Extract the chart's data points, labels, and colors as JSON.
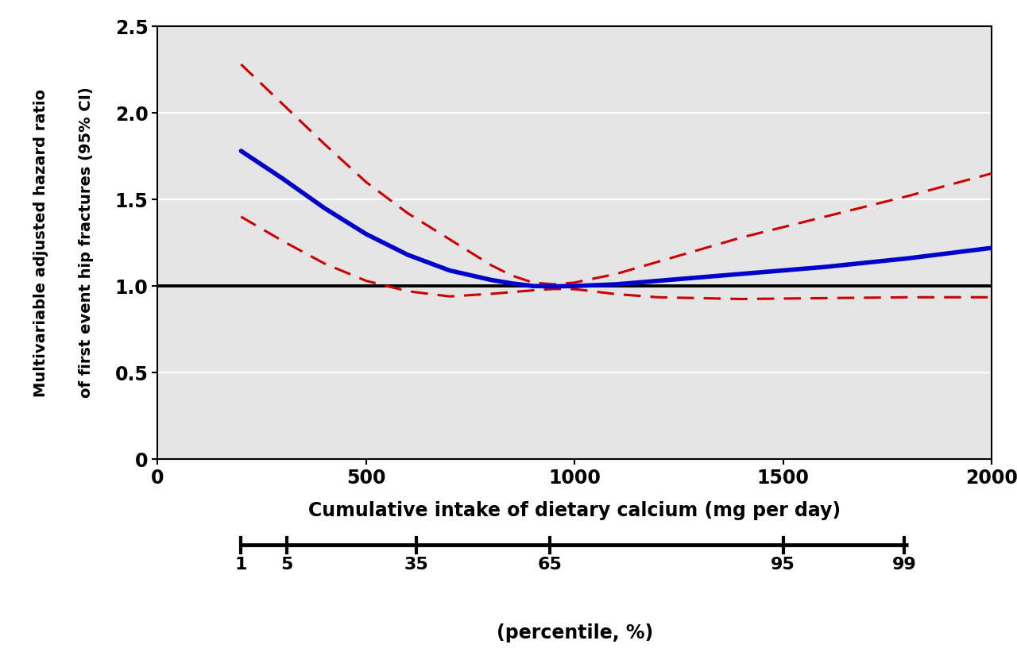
{
  "xlabel": "Cumulative intake of dietary calcium (mg per day)",
  "ylabel_line1": "Multivariable adjusted hazard ratio",
  "ylabel_line2": "of first event hip fractures (95% CI)",
  "xlabel2": "(percentile, %)",
  "xlim": [
    0,
    2000
  ],
  "ylim": [
    0,
    2.5
  ],
  "yticks": [
    0,
    0.5,
    1.0,
    1.5,
    2.0,
    2.5
  ],
  "ytick_labels": [
    "0",
    "0.5",
    "1.0",
    "1.5",
    "2.0",
    "2.5"
  ],
  "xticks": [
    0,
    500,
    1000,
    1500,
    2000
  ],
  "xtick_labels": [
    "0",
    "500",
    "1000",
    "1500",
    "2000"
  ],
  "bg_color": "#e5e5e5",
  "line_color": "#0000cc",
  "ci_color": "#cc0000",
  "ref_color": "#000000",
  "main_x": [
    200,
    300,
    400,
    500,
    600,
    700,
    800,
    850,
    900,
    950,
    1000,
    1100,
    1200,
    1400,
    1600,
    1800,
    2000
  ],
  "main_y": [
    1.78,
    1.62,
    1.45,
    1.3,
    1.18,
    1.09,
    1.035,
    1.015,
    1.0,
    0.998,
    1.0,
    1.01,
    1.03,
    1.07,
    1.11,
    1.16,
    1.22
  ],
  "upper_x": [
    200,
    300,
    400,
    500,
    600,
    700,
    800,
    850,
    900,
    950,
    1000,
    1100,
    1200,
    1400,
    1600,
    1800,
    2000
  ],
  "upper_y": [
    2.28,
    2.05,
    1.82,
    1.6,
    1.42,
    1.27,
    1.12,
    1.06,
    1.02,
    1.01,
    1.02,
    1.07,
    1.14,
    1.28,
    1.4,
    1.52,
    1.65
  ],
  "lower_x": [
    200,
    300,
    400,
    500,
    600,
    700,
    800,
    850,
    900,
    950,
    1000,
    1100,
    1200,
    1400,
    1600,
    1800,
    2000
  ],
  "lower_y": [
    1.4,
    1.26,
    1.13,
    1.03,
    0.97,
    0.94,
    0.955,
    0.965,
    0.975,
    0.983,
    0.982,
    0.953,
    0.935,
    0.925,
    0.93,
    0.935,
    0.935
  ],
  "percentile_labels": [
    "1",
    "5",
    "35",
    "65",
    "95",
    "99"
  ],
  "percentile_x": [
    200,
    310,
    620,
    940,
    1500,
    1790
  ],
  "percentile_bar_start_x": 200,
  "percentile_bar_end_x": 1800,
  "ref_line_y": 1.0,
  "white_bg": "#ffffff"
}
